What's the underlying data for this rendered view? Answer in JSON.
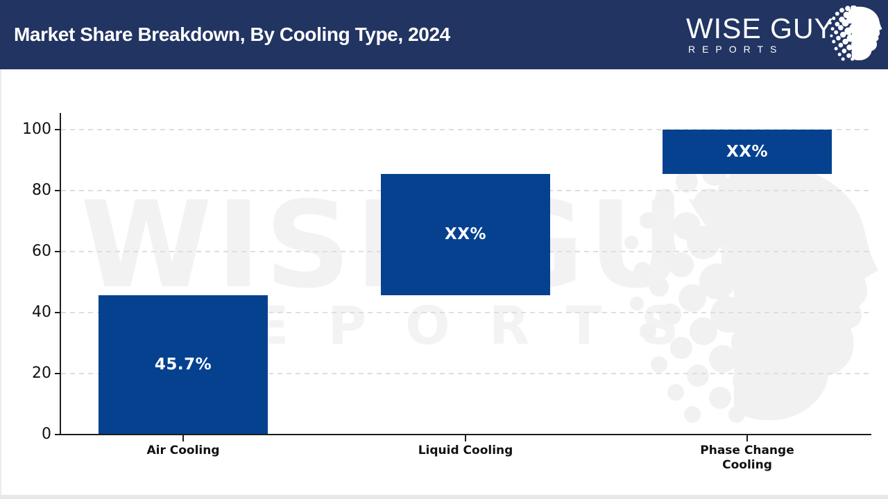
{
  "header": {
    "title": "Market Share Breakdown, By Cooling Type, 2024",
    "logo": {
      "line1": "WISE GUY",
      "line2": "REPORTS"
    }
  },
  "watermark": {
    "line1": "WISE GUY",
    "line2": "REPORTS"
  },
  "colors": {
    "header_bg": "#213462",
    "bar": "#05418f",
    "grid": "#dedede",
    "axis": "#1c1c1c",
    "bar_label": "#ffffff",
    "watermark": "#f2f2f2",
    "footer_strip": "#e8e8e8"
  },
  "chart_data": {
    "type": "bar",
    "subtype": "waterfall-stacked",
    "title": "Market Share Breakdown, By Cooling Type, 2024",
    "xlabel": "",
    "ylabel": "",
    "categories": [
      "Air Cooling",
      "Liquid Cooling",
      "Phase Change Cooling"
    ],
    "series": [
      {
        "name": "Market Share (%)",
        "segments": [
          {
            "category": "Air Cooling",
            "start": 0,
            "end": 45.7,
            "label": "45.7%",
            "value_shown": "45.7%"
          },
          {
            "category": "Liquid Cooling",
            "start": 45.7,
            "end": 85.5,
            "label": "XX%",
            "value_shown": "XX%"
          },
          {
            "category": "Phase Change Cooling",
            "start": 85.5,
            "end": 100,
            "label": "XX%",
            "value_shown": "XX%"
          }
        ]
      }
    ],
    "yticks": [
      0,
      20,
      40,
      60,
      80,
      100
    ],
    "ylim": [
      0,
      105
    ],
    "grid": "horizontal-dashed",
    "legend": "none"
  }
}
